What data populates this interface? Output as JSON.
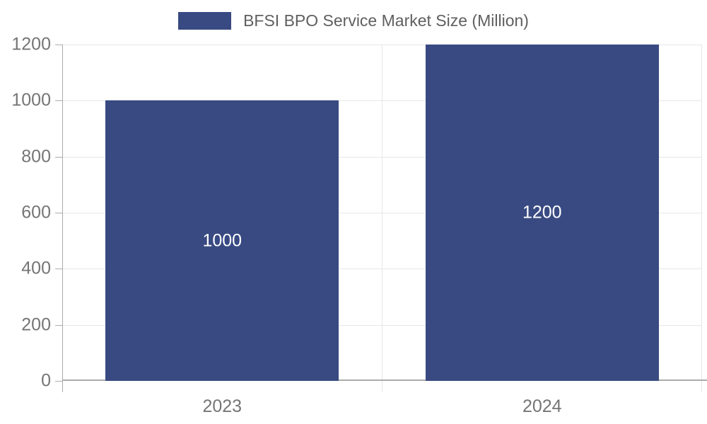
{
  "legend": {
    "label": "BFSI BPO Service Market Size (Million)",
    "swatch_color": "#394A82"
  },
  "chart_data": {
    "type": "bar",
    "title": "BFSI BPO Service Market Size (Million)",
    "categories": [
      "2023",
      "2024"
    ],
    "series": [
      {
        "name": "BFSI BPO Service Market Size (Million)",
        "values": [
          1000,
          1200
        ]
      }
    ],
    "bar_value_labels": [
      "1000",
      "1200"
    ],
    "xlabel": "",
    "ylabel": "",
    "ylim": [
      0,
      1200
    ],
    "ytick_interval": 200,
    "ytick_labels": [
      "0",
      "200",
      "400",
      "600",
      "800",
      "1000",
      "1200"
    ],
    "grid": true,
    "legend_position": "top-center"
  },
  "colors": {
    "bar": "#394A82",
    "gridline": "#E7E7E7",
    "axis": "#ABABAB",
    "tick_text": "#757575",
    "legend_text": "#5F5F5F",
    "bar_label_text": "#FFFFFF"
  }
}
